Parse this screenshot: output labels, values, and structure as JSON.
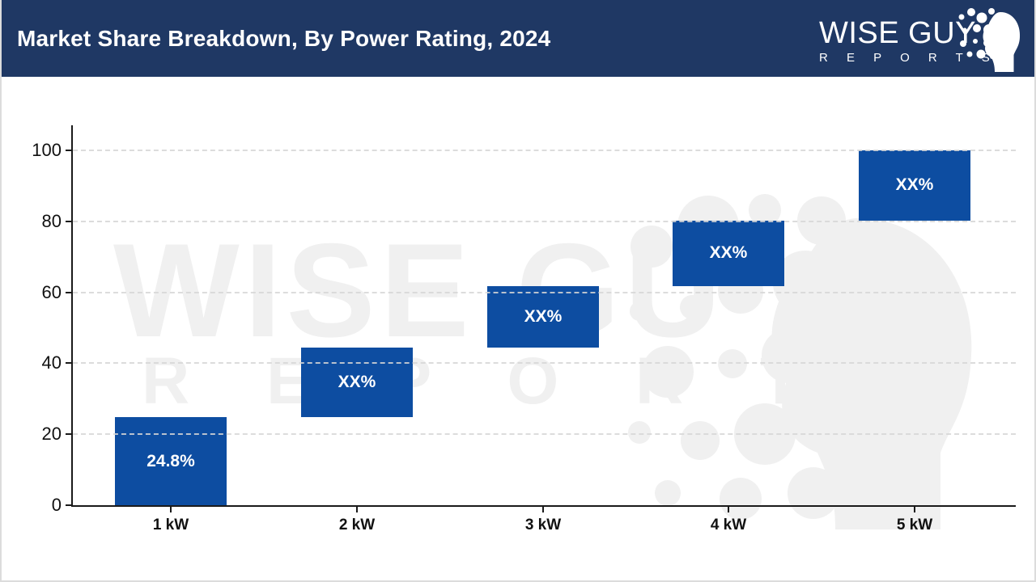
{
  "header": {
    "title": "Market Share Breakdown, By Power Rating, 2024",
    "logo": {
      "line1": "WISE GUY",
      "line2": "R E P O R T S"
    }
  },
  "watermark": {
    "line1": "WISE GU",
    "line2": "R E P O R T"
  },
  "chart_data": {
    "type": "bar",
    "subtype": "waterfall",
    "title": "Market Share Breakdown, By Power Rating, 2024",
    "xlabel": "",
    "ylabel": "",
    "categories": [
      "1 kW",
      "2 kW",
      "3 kW",
      "4 kW",
      "5 kW"
    ],
    "segments": [
      {
        "category": "1 kW",
        "start": 0,
        "end": 24.8,
        "label": "24.8%"
      },
      {
        "category": "2 kW",
        "start": 24.8,
        "end": 44.4,
        "label": "XX%"
      },
      {
        "category": "3 kW",
        "start": 44.4,
        "end": 61.8,
        "label": "XX%"
      },
      {
        "category": "4 kW",
        "start": 61.8,
        "end": 80.2,
        "label": "XX%"
      },
      {
        "category": "5 kW",
        "start": 80.2,
        "end": 100,
        "label": "XX%"
      }
    ],
    "yticks": [
      0,
      20,
      40,
      60,
      80,
      100
    ],
    "ylim": [
      0,
      107
    ],
    "grid": "dashed-horizontal",
    "legend": "none",
    "colors": {
      "bar": "#0d4da1",
      "bar_label": "#ffffff",
      "header_bg": "#1f3864",
      "gridline": "#d7d7d7",
      "axis": "#1a1a1a",
      "watermark": "#f0f0f0"
    }
  }
}
